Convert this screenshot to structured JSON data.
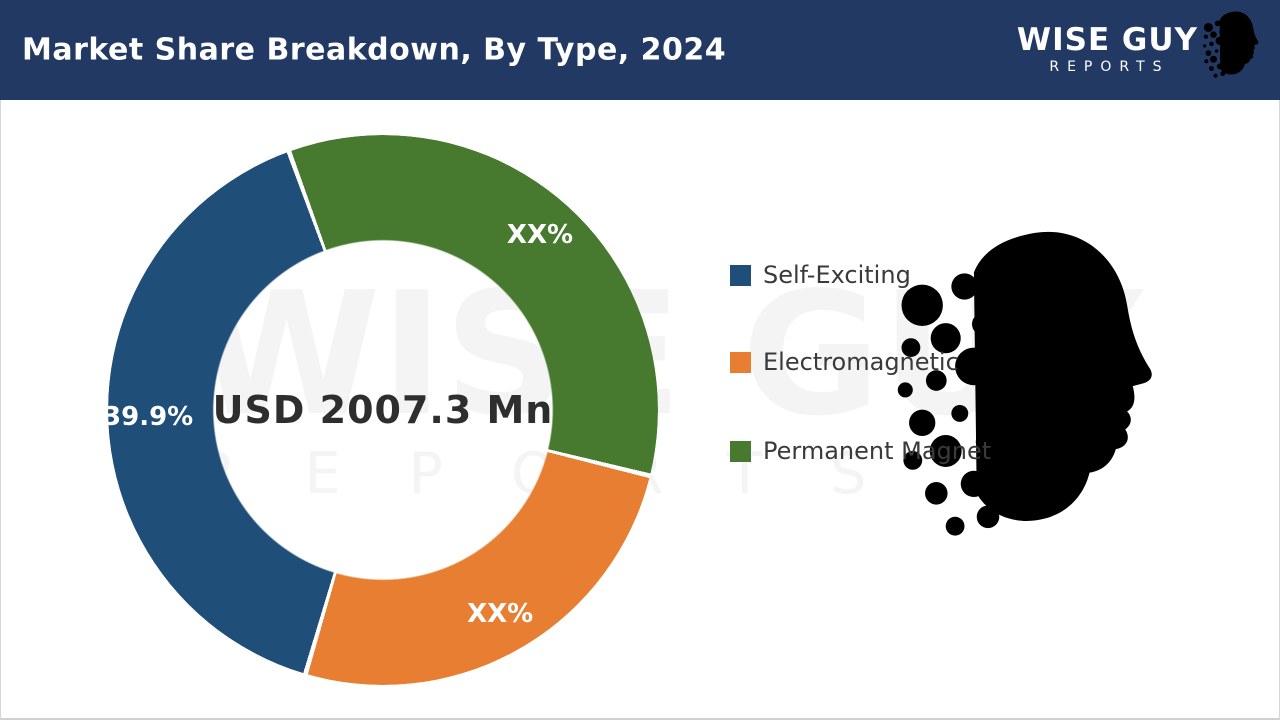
{
  "header": {
    "title": "Market Share Breakdown, By Type, 2024",
    "logo": {
      "name": "WISE GUY",
      "tagline": "REPORTS"
    }
  },
  "chart_data": {
    "type": "pie",
    "subtype": "donut",
    "title": "Market Share Breakdown, By Type, 2024",
    "center_label": "USD 2007.3 Mn",
    "series": [
      {
        "name": "Self-Exciting",
        "label": "39.9%",
        "value_pct": 39.9,
        "color": "#1F4E79"
      },
      {
        "name": "Electromagnetic",
        "label": "XX%",
        "value_pct": 25.7,
        "color": "#E87E31"
      },
      {
        "name": "Permanent Magnet",
        "label": "XX%",
        "value_pct": 34.4,
        "color": "#47792E"
      }
    ],
    "legend_position": "right",
    "direction": "counterclockwise",
    "start_angle_css_deg": -20,
    "separator_gap_deg": 1.0,
    "label_radius_px": 235,
    "donut_hole_ratio": 0.62
  },
  "watermark": {
    "line1": "WISE GUY",
    "line2": "REPORTS"
  }
}
